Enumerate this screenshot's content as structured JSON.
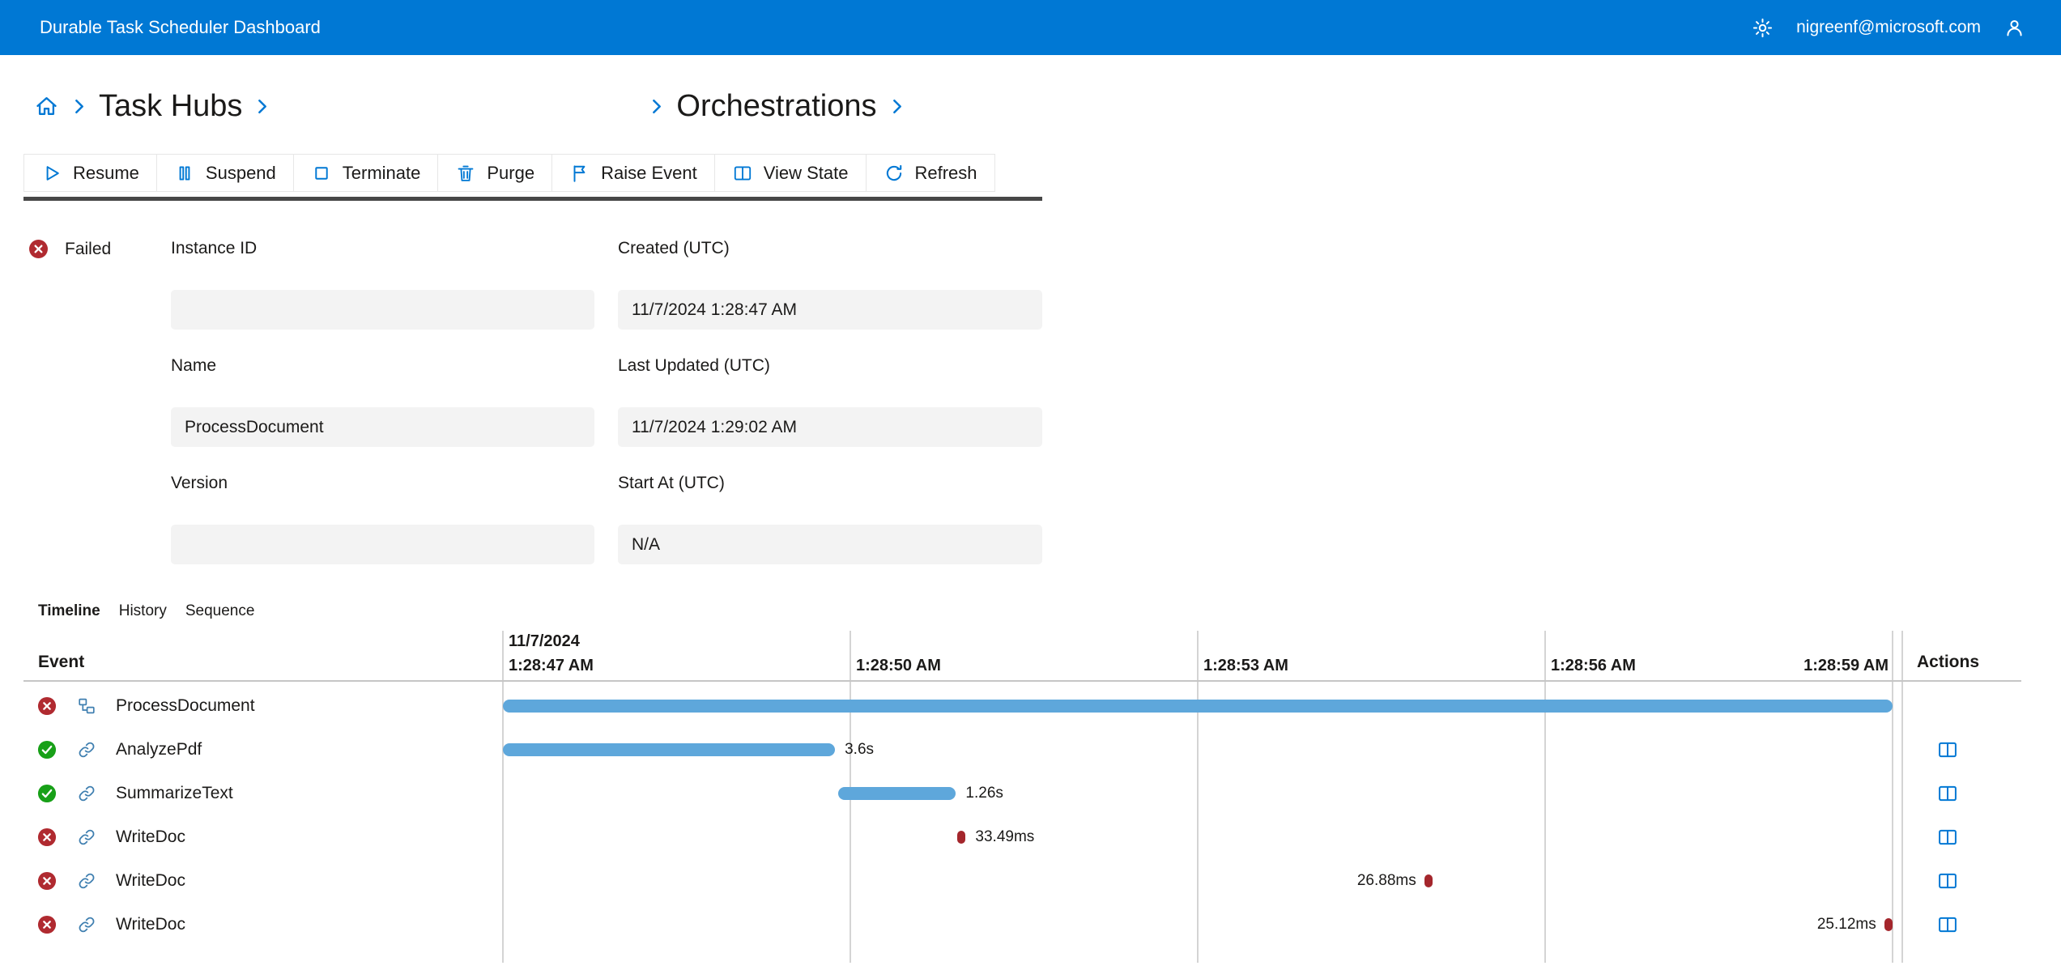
{
  "colors": {
    "topbar": "#0078d4",
    "accent": "#0078d4",
    "bar_blue": "#5ea7db",
    "bar_red": "#a4262c",
    "failed_red": "#b02a30",
    "succeeded_green": "#18a018",
    "icon_blue": "#3f7fb0"
  },
  "topbar": {
    "title": "Durable Task Scheduler Dashboard",
    "account_email": "nigreenf@microsoft.com"
  },
  "breadcrumb": {
    "task_hubs": "Task Hubs",
    "orchestrations": "Orchestrations"
  },
  "toolbar": {
    "buttons": [
      {
        "label": "Resume",
        "icon": "play-icon"
      },
      {
        "label": "Suspend",
        "icon": "pause-icon"
      },
      {
        "label": "Terminate",
        "icon": "stop-icon"
      },
      {
        "label": "Purge",
        "icon": "trash-icon"
      },
      {
        "label": "Raise Event",
        "icon": "flag-icon"
      },
      {
        "label": "View State",
        "icon": "view-state-icon"
      },
      {
        "label": "Refresh",
        "icon": "refresh-icon"
      }
    ]
  },
  "status": {
    "label": "Failed",
    "state": "failed"
  },
  "details": {
    "fields": [
      {
        "label": "Instance ID",
        "value": ""
      },
      {
        "label": "Created (UTC)",
        "value": "11/7/2024 1:28:47 AM"
      },
      {
        "label": "Name",
        "value": "ProcessDocument"
      },
      {
        "label": "Last Updated (UTC)",
        "value": "11/7/2024 1:29:02 AM"
      },
      {
        "label": "Version",
        "value": ""
      },
      {
        "label": "Start At (UTC)",
        "value": "N/A"
      }
    ]
  },
  "tabs": [
    {
      "label": "Timeline",
      "active": true
    },
    {
      "label": "History",
      "active": false
    },
    {
      "label": "Sequence",
      "active": false
    }
  ],
  "timeline": {
    "event_header": "Event",
    "actions_header": "Actions",
    "date_label": "11/7/2024",
    "ticks": [
      "1:28:47 AM",
      "1:28:50 AM",
      "1:28:53 AM",
      "1:28:56 AM",
      "1:28:59 AM"
    ],
    "rows": [
      {
        "name": "ProcessDocument",
        "status": "failed",
        "type": "orchestration",
        "bar_color": "blue",
        "bar_start_pct": 0,
        "bar_width_pct": 100,
        "duration": "",
        "duration_side": "right",
        "has_action": false
      },
      {
        "name": "AnalyzePdf",
        "status": "succeeded",
        "type": "activity",
        "bar_color": "blue",
        "bar_start_pct": 0,
        "bar_width_pct": 23.9,
        "duration": "3.6s",
        "duration_side": "right",
        "has_action": true
      },
      {
        "name": "SummarizeText",
        "status": "succeeded",
        "type": "activity",
        "bar_color": "blue",
        "bar_start_pct": 24.1,
        "bar_width_pct": 8.5,
        "duration": "1.26s",
        "duration_side": "right",
        "has_action": true
      },
      {
        "name": "WriteDoc",
        "status": "failed",
        "type": "activity",
        "bar_color": "red",
        "bar_start_pct": 32.7,
        "bar_width_pct": 0.6,
        "duration": "33.49ms",
        "duration_side": "right",
        "has_action": true
      },
      {
        "name": "WriteDoc",
        "status": "failed",
        "type": "activity",
        "bar_color": "red",
        "bar_start_pct": 66.3,
        "bar_width_pct": 0.6,
        "duration": "26.88ms",
        "duration_side": "left",
        "has_action": true
      },
      {
        "name": "WriteDoc",
        "status": "failed",
        "type": "activity",
        "bar_color": "red",
        "bar_start_pct": 99.4,
        "bar_width_pct": 0.6,
        "duration": "25.12ms",
        "duration_side": "left",
        "has_action": true
      }
    ]
  }
}
